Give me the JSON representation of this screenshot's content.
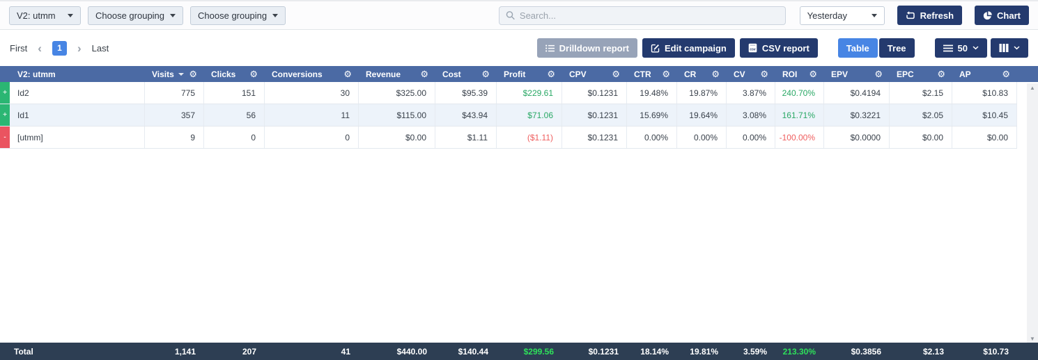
{
  "toolbar": {
    "campaign_select": "V2: utmm",
    "grouping_select_1": "Choose grouping",
    "grouping_select_2": "Choose grouping",
    "search_placeholder": "Search...",
    "date_select": "Yesterday",
    "refresh": "Refresh",
    "chart": "Chart"
  },
  "pagination": {
    "first": "First",
    "current_page": "1",
    "last": "Last"
  },
  "actions": {
    "drilldown": "Drilldown report",
    "edit_campaign": "Edit campaign",
    "csv_report": "CSV report",
    "table": "Table",
    "tree": "Tree",
    "rows_per_page": "50"
  },
  "table": {
    "columns": [
      "V2: utmm",
      "Visits",
      "Clicks",
      "Conversions",
      "Revenue",
      "Cost",
      "Profit",
      "CPV",
      "CTR",
      "CR",
      "CV",
      "ROI",
      "EPV",
      "EPC",
      "AP"
    ],
    "sorted_column": "Visits",
    "rows": [
      {
        "indicator": "positive",
        "indicator_glyph": "+",
        "name": "Id2",
        "values": [
          "775",
          "151",
          "30",
          "$325.00",
          "$95.39",
          "$229.61",
          "$0.1231",
          "19.48%",
          "19.87%",
          "3.87%",
          "240.70%",
          "$0.4194",
          "$2.15",
          "$10.83"
        ],
        "value_colors": [
          null,
          null,
          null,
          null,
          null,
          "green",
          null,
          null,
          null,
          null,
          "green",
          null,
          null,
          null
        ]
      },
      {
        "indicator": "positive",
        "indicator_glyph": "+",
        "name": "Id1",
        "values": [
          "357",
          "56",
          "11",
          "$115.00",
          "$43.94",
          "$71.06",
          "$0.1231",
          "15.69%",
          "19.64%",
          "3.08%",
          "161.71%",
          "$0.3221",
          "$2.05",
          "$10.45"
        ],
        "value_colors": [
          null,
          null,
          null,
          null,
          null,
          "green",
          null,
          null,
          null,
          null,
          "green",
          null,
          null,
          null
        ]
      },
      {
        "indicator": "negative",
        "indicator_glyph": "-",
        "name": "[utmm]",
        "values": [
          "9",
          "0",
          "0",
          "$0.00",
          "$1.11",
          "($1.11)",
          "$0.1231",
          "0.00%",
          "0.00%",
          "0.00%",
          "-100.00%",
          "$0.0000",
          "$0.00",
          "$0.00"
        ],
        "value_colors": [
          null,
          null,
          null,
          null,
          null,
          "red",
          null,
          null,
          null,
          null,
          "red",
          null,
          null,
          null
        ]
      }
    ],
    "total": {
      "label": "Total",
      "values": [
        "1,141",
        "207",
        "41",
        "$440.00",
        "$140.44",
        "$299.56",
        "$0.1231",
        "18.14%",
        "19.81%",
        "3.59%",
        "213.30%",
        "$0.3856",
        "$2.13",
        "$10.73"
      ],
      "value_colors": [
        null,
        null,
        null,
        null,
        null,
        "green",
        null,
        null,
        null,
        null,
        "green",
        null,
        null,
        null
      ]
    }
  },
  "colors": {
    "header_bg": "#4b6aa4",
    "footer_bg": "#2d3e53",
    "navy_button": "#243a6e",
    "active_blue": "#4785e4",
    "disabled_gray_button": "#97a3b8",
    "positive_green": "#29a865",
    "negative_red": "#ef5e5e",
    "footer_green": "#2ee05a",
    "positive_indicator": "#2bb673",
    "negative_indicator": "#ea5460"
  }
}
